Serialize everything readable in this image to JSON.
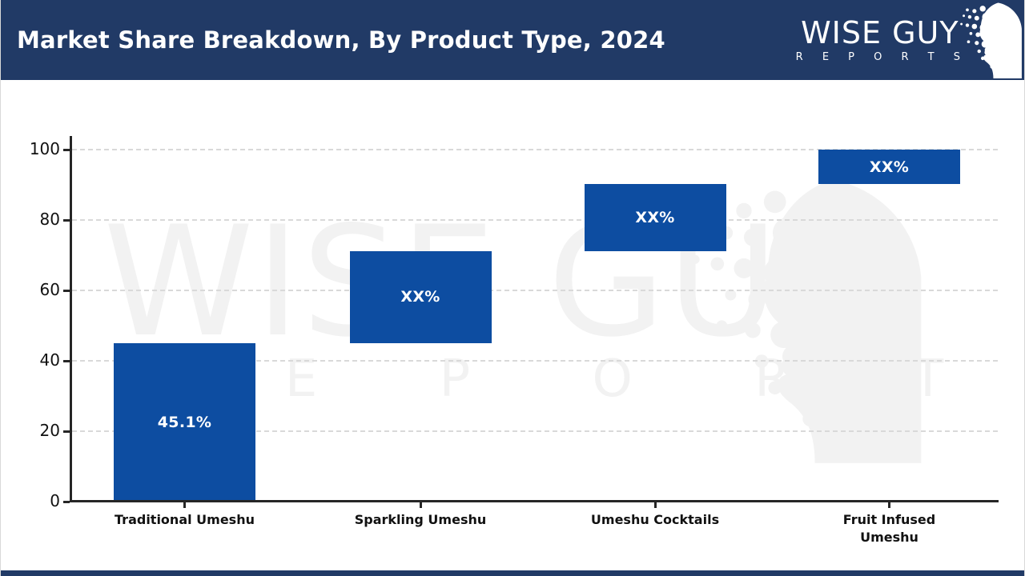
{
  "header": {
    "title": "Market Share Breakdown, By Product Type, 2024",
    "logo": {
      "line1": "WISE GUY",
      "line2": "R E P O R T S"
    }
  },
  "watermark": {
    "line1": "WISE GUY",
    "line2": "R E P O R T S"
  },
  "colors": {
    "header_bg": "#213a66",
    "bar": "#0d4da1",
    "axis": "#262626",
    "grid": "#d9d9d9",
    "bar_label": "#ffffff",
    "tick_label": "#111111",
    "watermark": "#f2f2f2"
  },
  "chart_data": {
    "type": "bar",
    "subtype": "waterfall-floating-bars",
    "title": "Market Share Breakdown, By Product Type, 2024",
    "categories": [
      "Traditional Umeshu",
      "Sparkling Umeshu",
      "Umeshu Cocktails",
      "Fruit Infused Umeshu"
    ],
    "categories_display": [
      "Traditional Umeshu",
      "Sparkling Umeshu",
      "Umeshu Cocktails",
      "Fruit Infused\nUmeshu"
    ],
    "segments": [
      {
        "category": "Traditional Umeshu",
        "start": 0,
        "end": 45.1,
        "label": "45.1%"
      },
      {
        "category": "Sparkling Umeshu",
        "start": 45.1,
        "end": 71.1,
        "label": "XX%"
      },
      {
        "category": "Umeshu Cocktails",
        "start": 71.1,
        "end": 90.2,
        "label": "XX%"
      },
      {
        "category": "Fruit Infused Umeshu",
        "start": 90.2,
        "end": 100,
        "label": "XX%"
      }
    ],
    "xlabel": "",
    "ylabel": "",
    "yticks": [
      0,
      20,
      40,
      60,
      80,
      100
    ],
    "ylim": [
      0,
      103.8
    ],
    "grid": "horizontal-dashed",
    "legend": null
  }
}
